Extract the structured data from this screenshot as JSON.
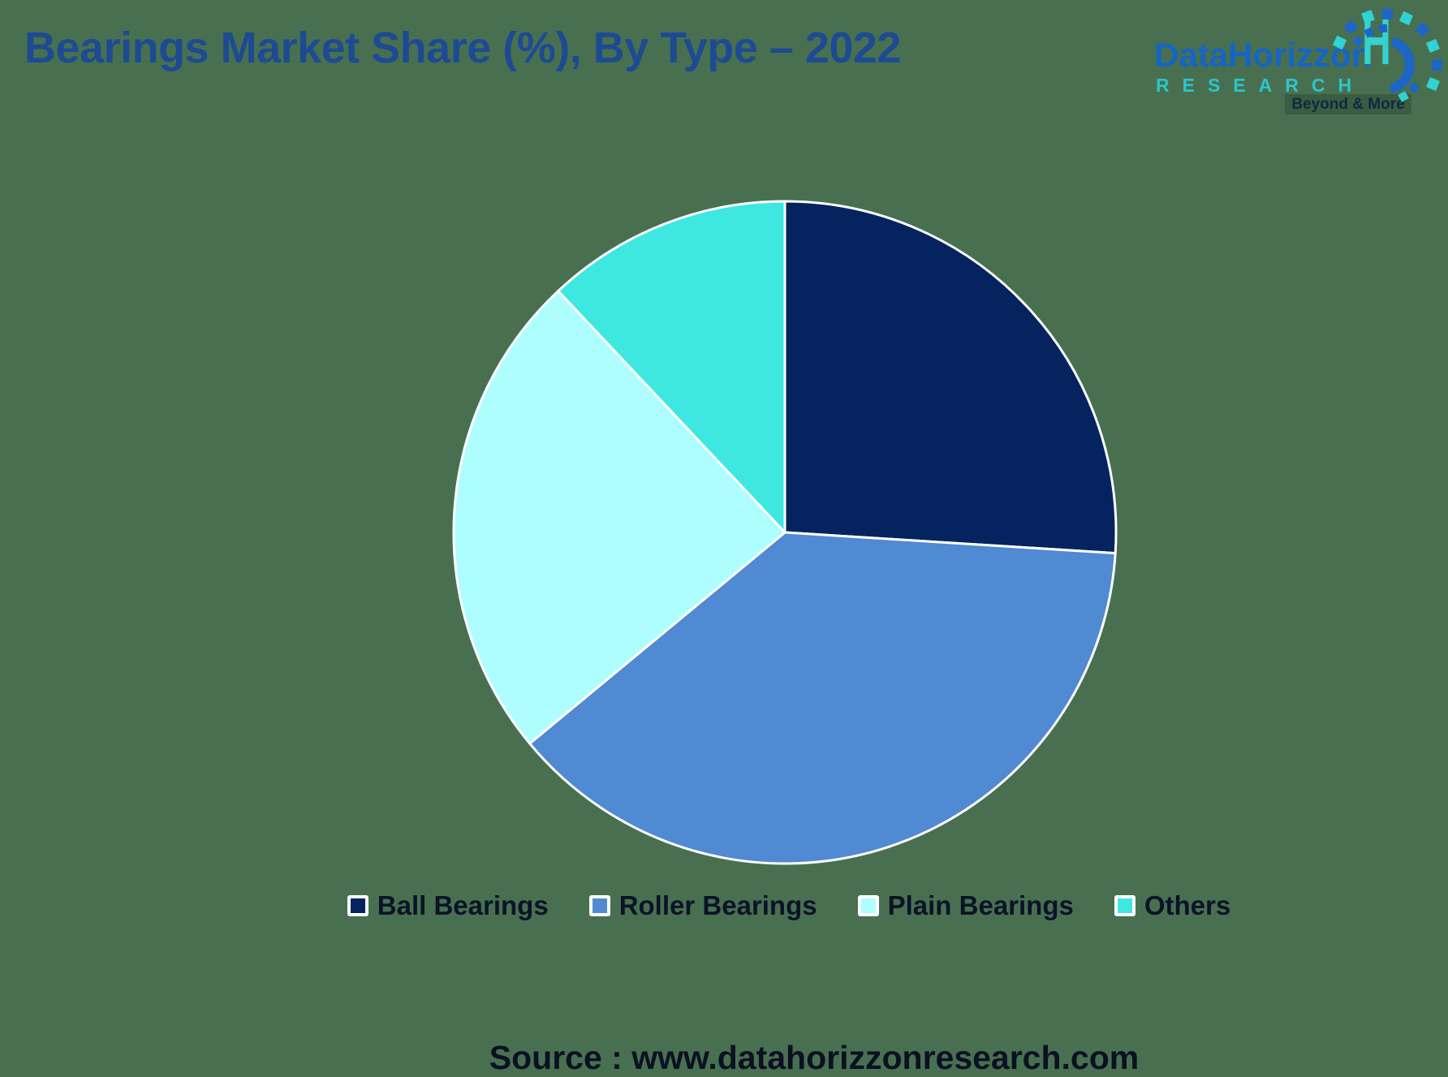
{
  "page": {
    "background_color": "#487050",
    "title": "Bearings Market Share (%), By Type – 2022",
    "title_color": "#1d4b93"
  },
  "chart_data": {
    "type": "pie",
    "title": "Bearings Market Share (%), By Type – 2022",
    "unit": "%",
    "categories": [
      "Ball Bearings",
      "Roller Bearings",
      "Plain Bearings",
      "Others"
    ],
    "values": [
      26,
      38,
      24,
      12
    ],
    "colors": [
      "#04235f",
      "#4f8ad2",
      "#aefeff",
      "#3ee8e0"
    ],
    "start_angle_deg": 0,
    "direction": "clockwise",
    "slice_border_color": "#ffffff",
    "legend_position": "bottom"
  },
  "legend": {
    "items": [
      {
        "label": "Ball Bearings",
        "color": "#04235f"
      },
      {
        "label": "Roller Bearings",
        "color": "#4f8ad2"
      },
      {
        "label": "Plain Bearings",
        "color": "#aefeff"
      },
      {
        "label": "Others",
        "color": "#3ee8e0"
      }
    ]
  },
  "source": {
    "text": "Source : www.datahorizzonresearch.com"
  },
  "logo": {
    "name": "DataHorizzon",
    "subtitle": "RESEARCH",
    "tagline": "Beyond & More",
    "monogram_letter": "H",
    "blue": "#1e66c5",
    "teal": "#2fd3d3",
    "name_color": "#1565c4",
    "subtitle_color": "#2cc5c9",
    "tagline_color": "#0d2b3e"
  }
}
